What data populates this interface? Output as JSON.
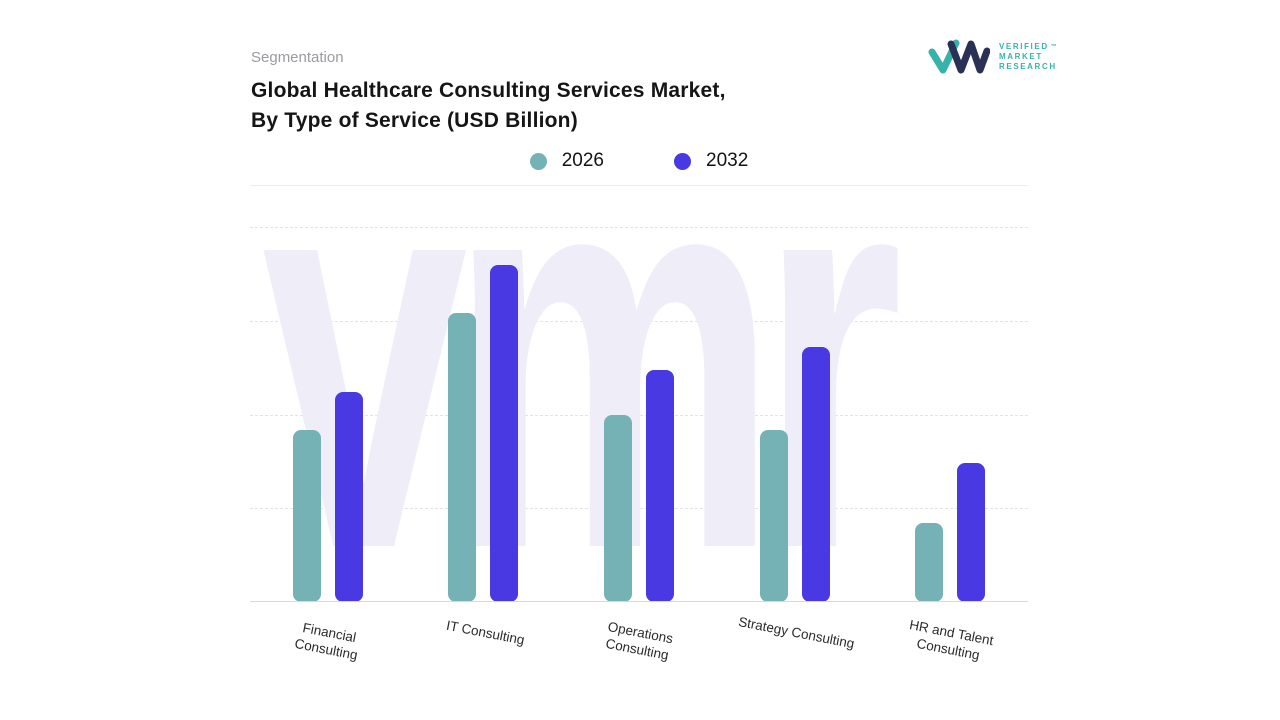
{
  "header": {
    "eyebrow": "Segmentation",
    "title_line1": "Global Healthcare Consulting Services Market,",
    "title_line2": "By Type of Service (USD Billion)"
  },
  "logo": {
    "name_lines": [
      "VERIFIED",
      "MARKET",
      "RESEARCH"
    ],
    "trademark": "™",
    "text_color": "#35b3ab",
    "mark_dark": "#2b3154",
    "mark_teal": "#35b3ab"
  },
  "chart_data": {
    "type": "bar",
    "title": "Global Healthcare Consulting Services Market, By Type of Service (USD Billion)",
    "unit": "USD Billion",
    "categories": [
      "Financial\nConsulting",
      "IT Consulting",
      "Operations\nConsulting",
      "Strategy Consulting",
      "HR and Talent\nConsulting"
    ],
    "series": [
      {
        "name": "2026",
        "color": "#74b2b5",
        "values": [
          46,
          77,
          50,
          46,
          21
        ]
      },
      {
        "name": "2032",
        "color": "#4839e3",
        "values": [
          56,
          90,
          62,
          68,
          37
        ]
      }
    ],
    "ylim": [
      0,
      100
    ],
    "gridlines": [
      25,
      50,
      75,
      100
    ],
    "grid_style": "dashed",
    "y_axis_tick_labels_visible": false,
    "legend_position": "top-center",
    "watermark": "vmr"
  }
}
